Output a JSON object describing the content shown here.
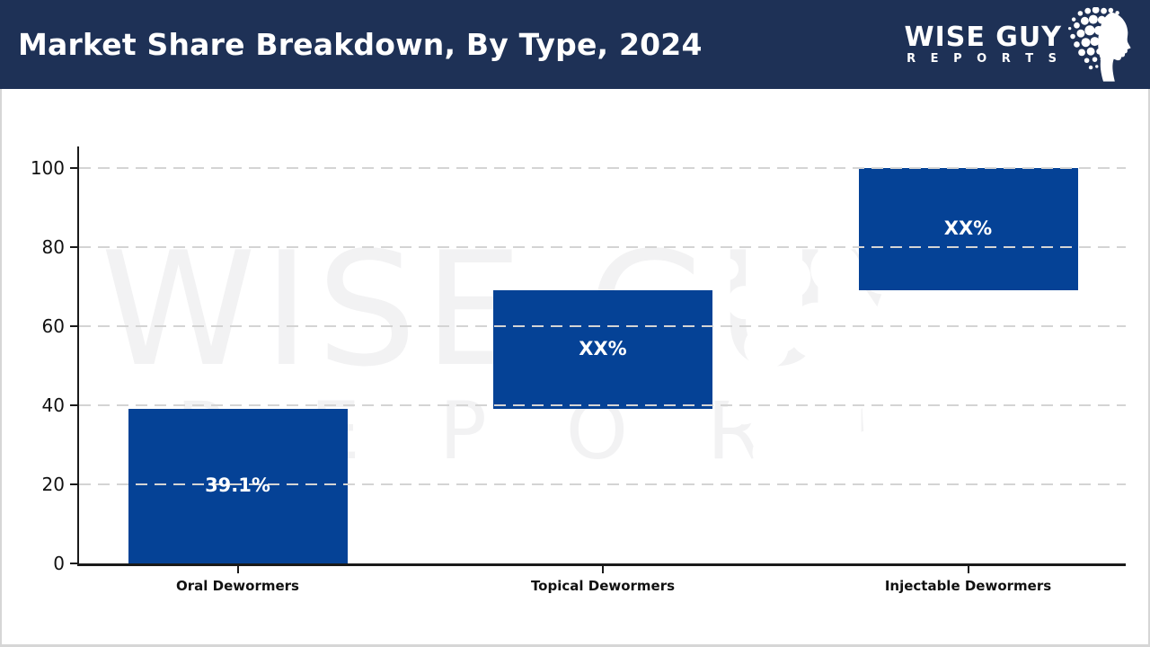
{
  "header": {
    "title": "Market Share Breakdown, By Type, 2024",
    "logo": {
      "name": "WISE GUY",
      "subtitle": "R E P O R T S"
    }
  },
  "watermark": {
    "line1": "WISE GUY",
    "line2": "R E P O R T S"
  },
  "chart_data": {
    "type": "bar",
    "subtype": "floating-segment-waterfall",
    "title": "Market Share Breakdown, By Type, 2024",
    "categories": [
      "Oral Dewormers",
      "Topical Dewormers",
      "Injectable Dewormers"
    ],
    "bars": [
      {
        "category": "Oral Dewormers",
        "start": 0,
        "end": 39.1,
        "label": "39.1%"
      },
      {
        "category": "Topical Dewormers",
        "start": 39,
        "end": 69,
        "label": "XX%"
      },
      {
        "category": "Injectable Dewormers",
        "start": 69,
        "end": 100,
        "label": "XX%"
      }
    ],
    "xlabel": "",
    "ylabel": "",
    "ylim": [
      0,
      100
    ],
    "yticks": [
      0,
      20,
      40,
      60,
      80,
      100
    ],
    "grid": "horizontal-dashed",
    "legend_position": "none",
    "bar_color": "#054296",
    "value_label_color": "#ffffff"
  },
  "colors": {
    "header_background": "#1e3156",
    "bar_fill": "#054296",
    "axis": "#1a1a1a",
    "gridline": "#d4d4d4",
    "watermark": "#f2f2f3"
  }
}
